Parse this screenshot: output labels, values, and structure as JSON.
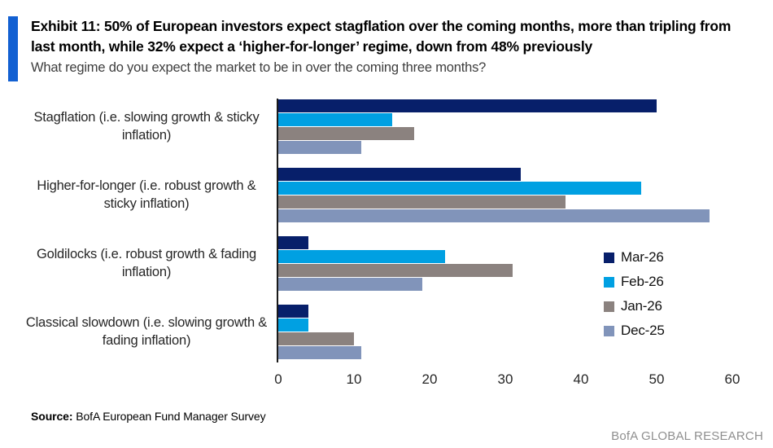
{
  "header": {
    "title": "Exhibit 11: 50% of European investors expect stagflation over the coming months, more than tripling from last month, while 32% expect a ‘higher-for-longer’ regime, down from 48% previously",
    "subtitle": "What regime do you expect the market to be in over the coming three months?"
  },
  "chart_data": {
    "type": "bar",
    "orientation": "horizontal",
    "title": "Exhibit 11: 50% of European investors expect stagflation over the coming months, more than tripling from last month, while 32% expect a ‘higher-for-longer’ regime, down from 48% previously",
    "subtitle": "What regime do you expect the market to be in over the coming three months?",
    "categories": [
      "Stagflation (i.e. slowing growth & sticky inflation)",
      "Higher-for-longer (i.e. robust growth & sticky inflation)",
      "Goldilocks (i.e. robust growth & fading inflation)",
      "Classical slowdown (i.e. slowing growth & fading inflation)"
    ],
    "series": [
      {
        "name": "Mar-26",
        "color": "#071f6a",
        "values": [
          50,
          32,
          4,
          4
        ]
      },
      {
        "name": "Feb-26",
        "color": "#00a0e2",
        "values": [
          15,
          48,
          22,
          4
        ]
      },
      {
        "name": "Jan-26",
        "color": "#8b827f",
        "values": [
          18,
          38,
          31,
          10
        ]
      },
      {
        "name": "Dec-25",
        "color": "#8194ba",
        "values": [
          11,
          57,
          19,
          11
        ]
      }
    ],
    "xlim": [
      0,
      60
    ],
    "xticks": [
      0,
      10,
      20,
      30,
      40,
      50,
      60
    ],
    "xlabel": "",
    "ylabel": "",
    "grid": false,
    "legend_position": "middle-right",
    "unit": "percent"
  },
  "footer": {
    "source_label": "Source:",
    "source_text": " BofA European Fund Manager Survey",
    "brand": "BofA GLOBAL RESEARCH"
  },
  "colors": {
    "accent_bar": "#1260d2",
    "axis": "#1a1a1a",
    "brand_text": "#8f8f8f"
  }
}
